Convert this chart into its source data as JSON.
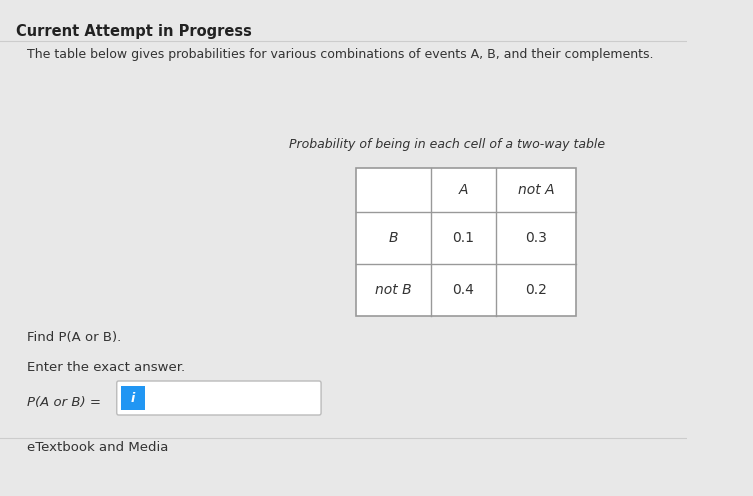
{
  "title_main": "Current Attempt in Progress",
  "subtitle": "The table below gives probabilities for various combinations of events A, B, and their complements.",
  "table_title": "Probability of being in each cell of a two-way table",
  "question_line1": "Find P(A or B).",
  "question_line2": "Enter the exact answer.",
  "answer_label": "P(A or B) =",
  "answer_box_color": "#2196F3",
  "footer_text": "eTextbook and Media",
  "bg_color": "#e8e8e8",
  "inner_bg": "#e8e8e8",
  "white": "#ffffff",
  "text_color": "#333333",
  "border_color": "#888888",
  "title_color": "#222222",
  "subtitle_color": "#333333",
  "table_border_color": "#999999",
  "col_headers": [
    "A",
    "not A"
  ],
  "row_headers": [
    "B",
    "not B"
  ],
  "values_row1": [
    "0.1",
    "0.3"
  ],
  "values_row2": [
    "0.4",
    "0.2"
  ]
}
